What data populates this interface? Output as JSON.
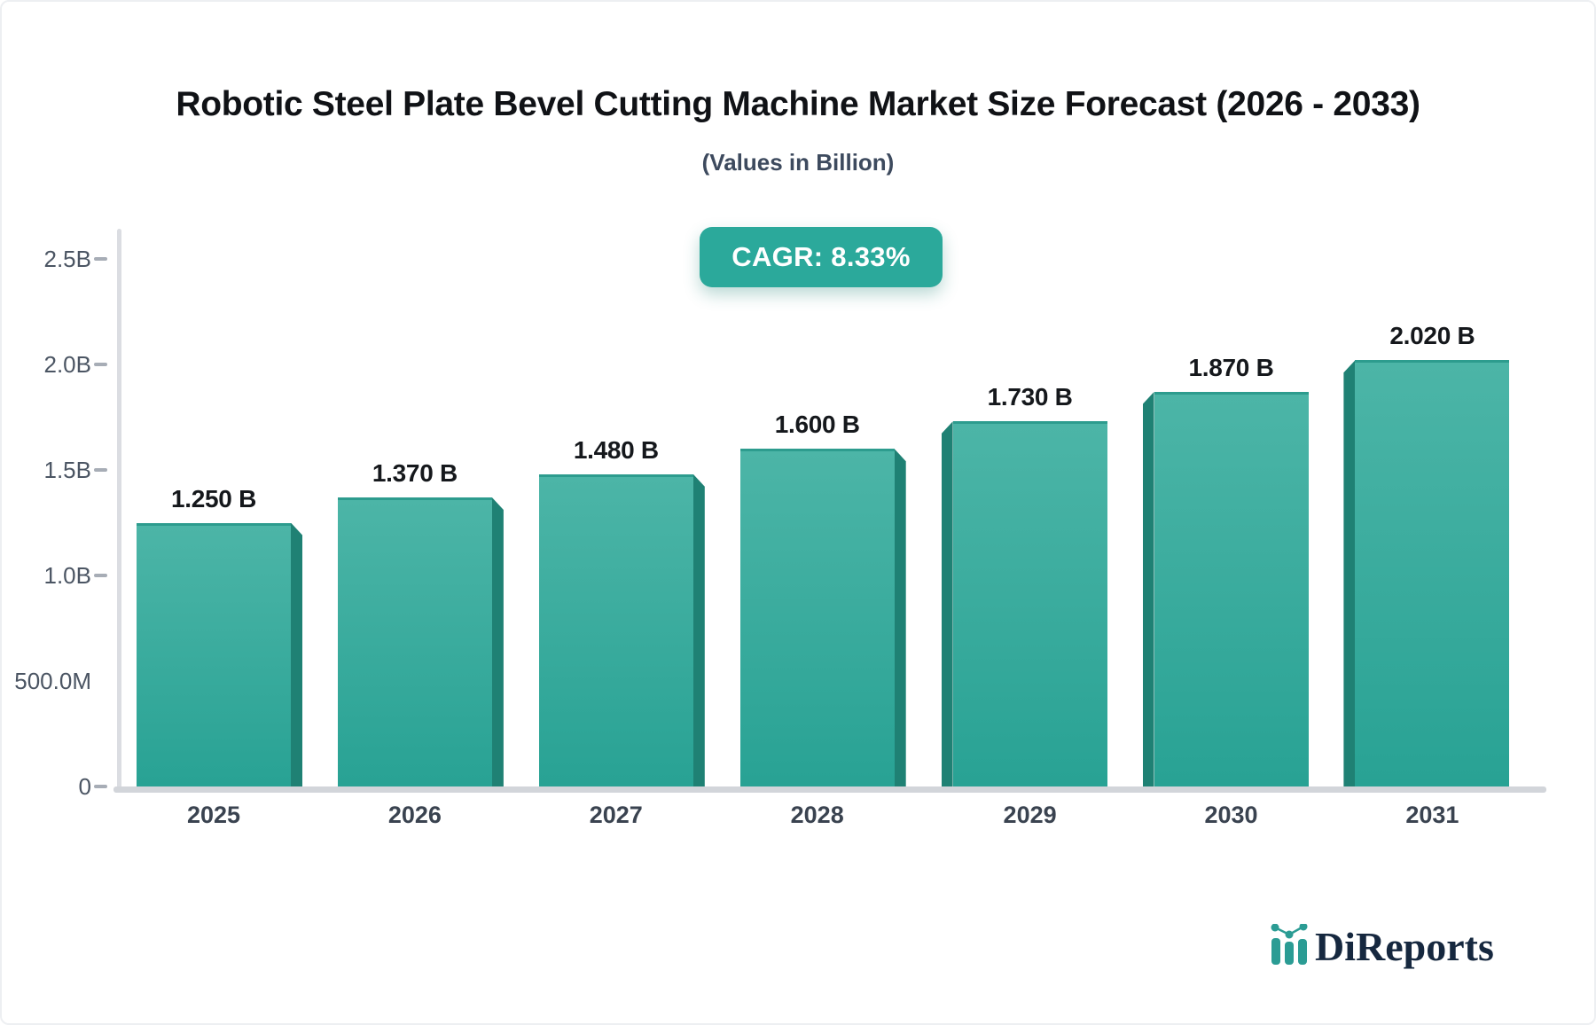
{
  "header": {
    "title": "Robotic Steel Plate Bevel Cutting Machine Market Size Forecast (2026 - 2033)",
    "subtitle": "(Values in Billion)",
    "cagr_badge": "CAGR: 8.33%"
  },
  "chart_data": {
    "type": "bar",
    "title": "Robotic Steel Plate Bevel Cutting Machine Market Size Forecast (2026 - 2033)",
    "subtitle": "(Values in Billion)",
    "cagr": "8.33%",
    "categories": [
      "2025",
      "2026",
      "2027",
      "2028",
      "2029",
      "2030",
      "2031"
    ],
    "values": [
      1.25,
      1.37,
      1.48,
      1.6,
      1.73,
      1.87,
      2.02
    ],
    "bar_labels": [
      "1.250 B",
      "1.370 B",
      "1.480 B",
      "1.600 B",
      "1.730 B",
      "1.870 B",
      "2.020 B"
    ],
    "unit": "Billion",
    "xlabel": "",
    "ylabel": "",
    "ylim": [
      0,
      2.5
    ],
    "grid": false,
    "legend": false,
    "y_ticks": [
      {
        "label": "2.5B",
        "value": 2.5,
        "dash": true
      },
      {
        "label": "2.0B",
        "value": 2.0,
        "dash": true
      },
      {
        "label": "1.5B",
        "value": 1.5,
        "dash": true
      },
      {
        "label": "1.0B",
        "value": 1.0,
        "dash": true
      },
      {
        "label": "500.0M",
        "value": 0.5,
        "dash": false
      },
      {
        "label": "0",
        "value": 0,
        "dash": true
      }
    ]
  },
  "colors": {
    "bar_face_top": "#4cb5a7",
    "bar_face_bottom": "#28a294",
    "bar_top_edge": "#2d9c8e",
    "bar_side": "#1f8174",
    "badge_bg": "#2ba99b",
    "badge_text": "#ffffff",
    "axis_line": "#dbdde2",
    "baseline": "#d2d5da",
    "tick_dash": "#a7adb6",
    "y_label": "#4b5563",
    "x_label": "#3a4350",
    "value_label": "#15181c",
    "logo_text": "#16283f",
    "logo_icon": "#2b9c94"
  },
  "footer": {
    "logo_text": "DiReports"
  }
}
